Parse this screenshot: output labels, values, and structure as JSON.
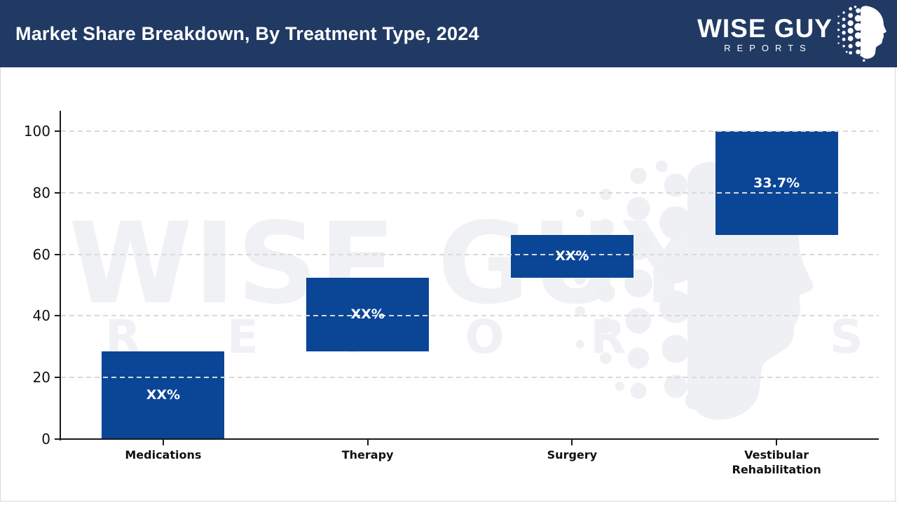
{
  "header": {
    "title": "Market Share Breakdown, By Treatment Type, 2024",
    "logo": {
      "line1": "WISE GUY",
      "line2": "REPORTS"
    }
  },
  "watermark": {
    "line1": "WISE GUY",
    "line2": "R E P O R T S"
  },
  "colors": {
    "header_bg": "#213a64",
    "bar": "#0b4596",
    "grid": "#d9d9d9",
    "axis": "#1a1a1a",
    "watermark": "#f0f1f4"
  },
  "chart_data": {
    "type": "bar",
    "subtype": "floating-waterfall-segments",
    "title": "Market Share Breakdown, By Treatment Type, 2024",
    "categories": [
      "Medications",
      "Therapy",
      "Surgery",
      "Vestibular Rehabilitation"
    ],
    "xlabels_display": [
      "Medications",
      "Therapy",
      "Surgery",
      "Vestibular\nRehabilitation"
    ],
    "series": [
      {
        "name": "Market share segment",
        "ranges": [
          [
            0,
            28.5
          ],
          [
            28.5,
            52.5
          ],
          [
            52.5,
            66.3
          ],
          [
            66.3,
            100
          ]
        ],
        "segment_values": [
          28.5,
          24.0,
          13.8,
          33.7
        ]
      }
    ],
    "bar_labels": [
      "XX%",
      "XX%",
      "XX%",
      "33.7%"
    ],
    "xlabel": "",
    "ylabel": "",
    "ylim": [
      0,
      100
    ],
    "yticks": [
      0,
      20,
      40,
      60,
      80,
      100
    ],
    "grid": "horizontal dashed, drawn over bars",
    "legend": "none",
    "bar_color": "#0b4596"
  }
}
